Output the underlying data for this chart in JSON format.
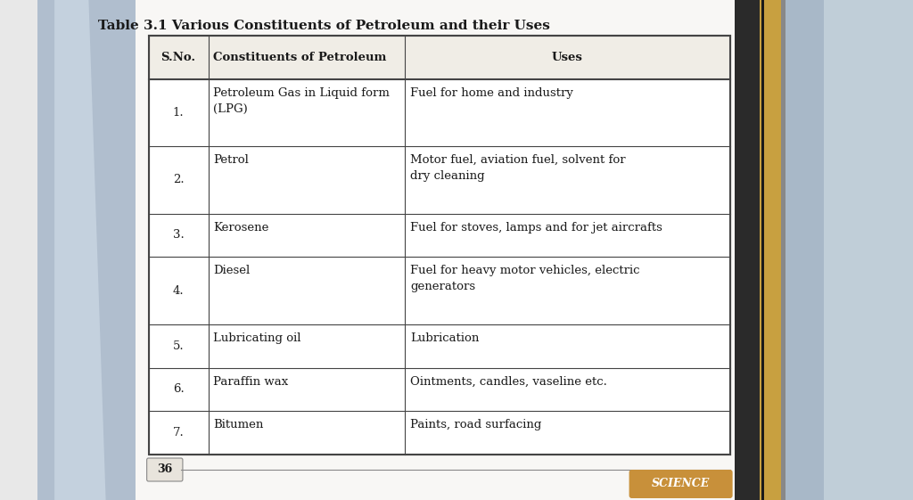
{
  "title": "Table 3.1 Various Constituents of Petroleum and their Uses",
  "subtitle": "SCIENCE",
  "page_number": "36",
  "col_headers": [
    "S.No.",
    "Constituents of Petroleum",
    "Uses"
  ],
  "rows": [
    [
      "1.",
      "Petroleum Gas in Liquid form\n(LPG)",
      "Fuel for home and industry"
    ],
    [
      "2.",
      "Petrol",
      "Motor fuel, aviation fuel, solvent for\ndry cleaning"
    ],
    [
      "3.",
      "Kerosene",
      "Fuel for stoves, lamps and for jet aircrafts"
    ],
    [
      "4.",
      "Diesel",
      "Fuel for heavy motor vehicles, electric\ngenerators"
    ],
    [
      "5.",
      "Lubricating oil",
      "Lubrication"
    ],
    [
      "6.",
      "Paraffin wax",
      "Ointments, candles, vaseline etc."
    ],
    [
      "7.",
      "Bitumen",
      "Paints, road surfacing"
    ]
  ],
  "page_bg": "#e8e8e8",
  "left_strip_color": "#b8c8d8",
  "page_white": "#f8f7f5",
  "table_bg": "#ffffff",
  "header_bg": "#f0ede8",
  "border_color": "#444444",
  "title_color": "#1a1a1a",
  "text_color": "#1a1a1a",
  "science_bg": "#c8903a",
  "science_text": "#ffffff",
  "pencil_color": "#c8a060",
  "right_strip_color": "#d0c8b8",
  "tab_bg": "#e8e4dc"
}
